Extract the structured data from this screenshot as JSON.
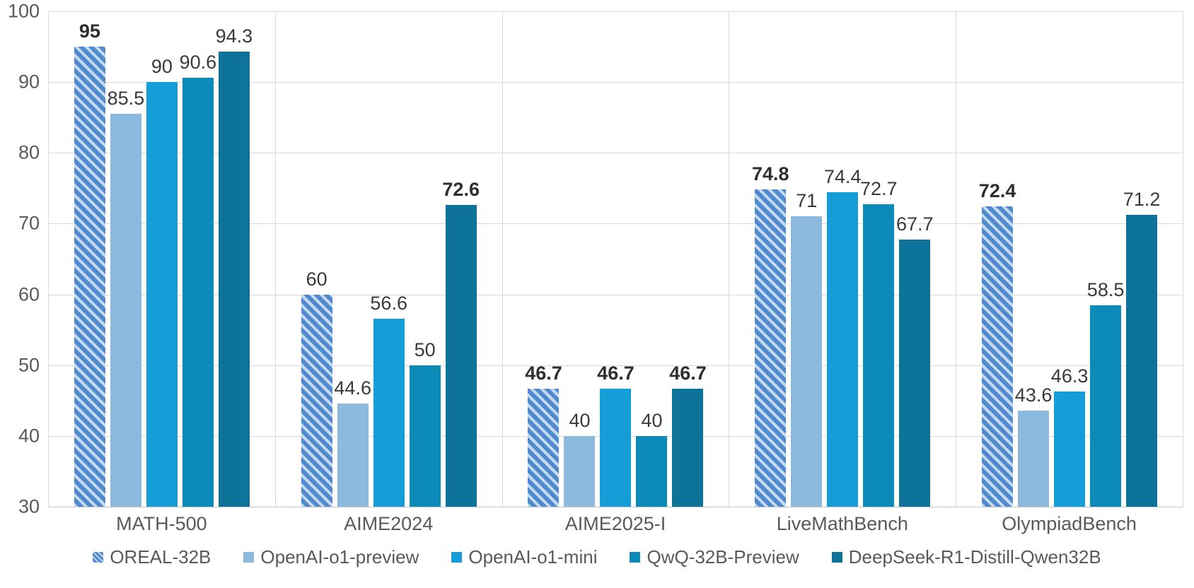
{
  "chart_data": {
    "type": "bar",
    "title": "",
    "xlabel": "",
    "ylabel": "",
    "ylim": [
      30,
      100
    ],
    "yticks": [
      30,
      40,
      50,
      60,
      70,
      80,
      90,
      100
    ],
    "grid": true,
    "legend_position": "bottom",
    "categories": [
      "MATH-500",
      "AIME2024",
      "AIME2025-I",
      "LiveMathBench",
      "OlympiadBench"
    ],
    "series": [
      {
        "name": "OREAL-32B",
        "values": [
          95,
          60,
          46.7,
          74.8,
          72.4
        ],
        "labels": [
          "95",
          "60",
          "46.7",
          "74.8",
          "72.4"
        ],
        "bold": [
          true,
          false,
          true,
          true,
          true
        ],
        "color": "#5089CE",
        "pattern": "diagonal-stripes",
        "pattern_color": "#C3DAF1"
      },
      {
        "name": "OpenAI-o1-preview",
        "values": [
          85.5,
          44.6,
          40,
          71,
          43.6
        ],
        "labels": [
          "85.5",
          "44.6",
          "40",
          "71",
          "43.6"
        ],
        "bold": [
          false,
          false,
          false,
          false,
          false
        ],
        "color": "#8CBADF",
        "pattern": "solid",
        "pattern_color": ""
      },
      {
        "name": "OpenAI-o1-mini",
        "values": [
          90,
          56.6,
          46.7,
          74.4,
          46.3
        ],
        "labels": [
          "90",
          "56.6",
          "46.7",
          "74.4",
          "46.3"
        ],
        "bold": [
          false,
          false,
          true,
          false,
          false
        ],
        "color": "#149DD6",
        "pattern": "solid",
        "pattern_color": ""
      },
      {
        "name": "QwQ-32B-Preview",
        "values": [
          90.6,
          50,
          40,
          72.7,
          58.5
        ],
        "labels": [
          "90.6",
          "50",
          "40",
          "72.7",
          "58.5"
        ],
        "bold": [
          false,
          false,
          false,
          false,
          false
        ],
        "color": "#0C8BB9",
        "pattern": "solid",
        "pattern_color": ""
      },
      {
        "name": "DeepSeek-R1-Distill-Qwen32B",
        "values": [
          94.3,
          72.6,
          46.7,
          67.7,
          71.2
        ],
        "labels": [
          "94.3",
          "72.6",
          "46.7",
          "67.7",
          "71.2"
        ],
        "bold": [
          false,
          true,
          true,
          false,
          false
        ],
        "color": "#0D7399",
        "pattern": "solid",
        "pattern_color": ""
      }
    ]
  },
  "colors": {
    "background": "#FFFFFF",
    "gridline": "#D9D9D9",
    "axis_line": "#C9C9C9",
    "value_label_text": "#3A3A3A",
    "axis_text": "#595959"
  }
}
